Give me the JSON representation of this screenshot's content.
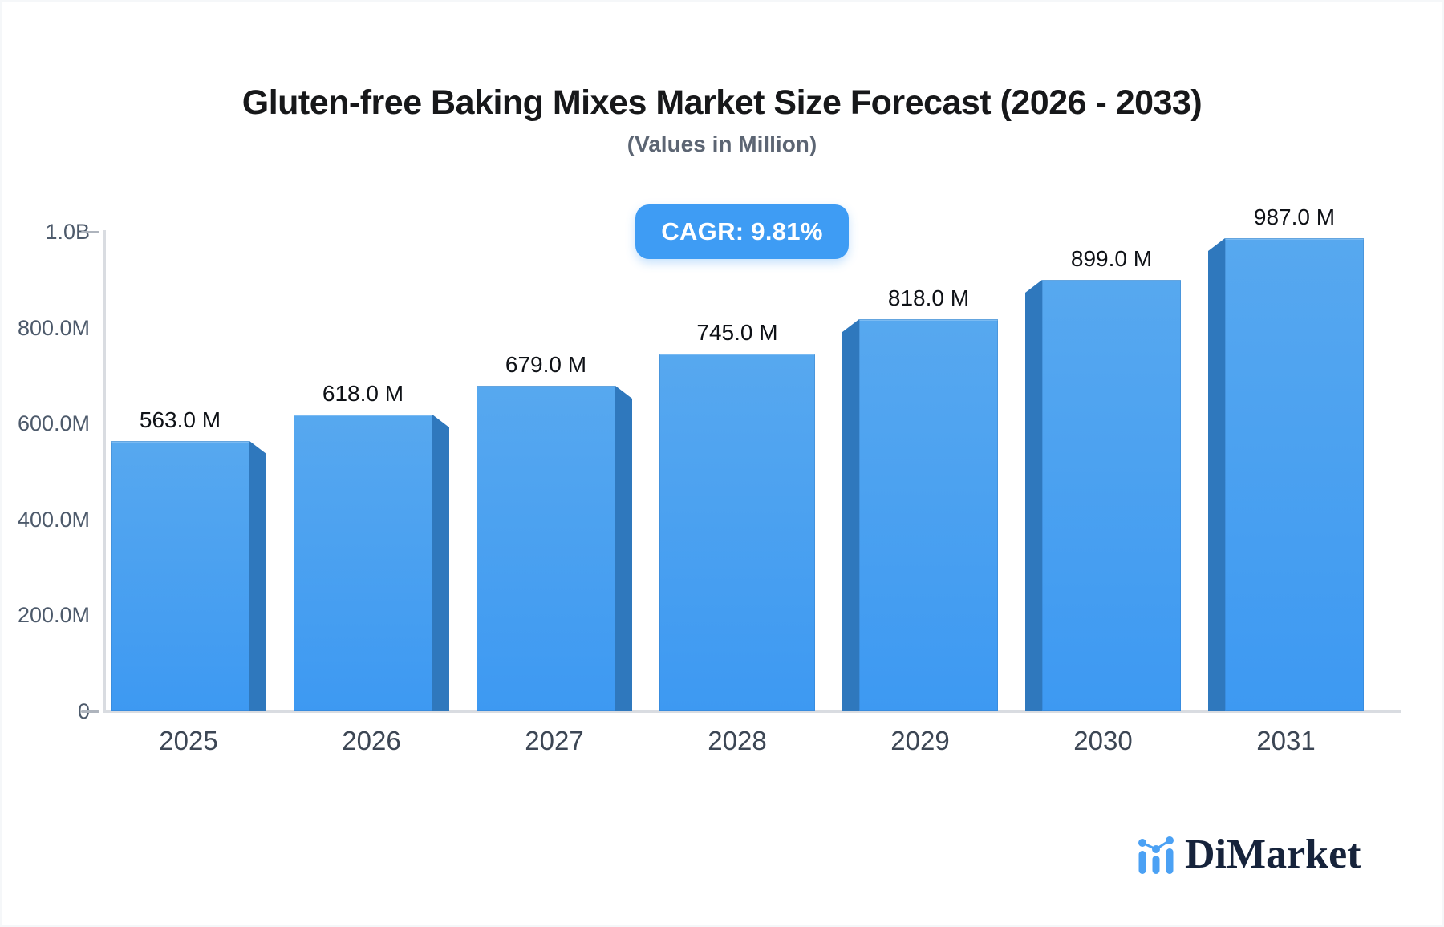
{
  "header": {
    "title": "Gluten-free Baking Mixes Market Size Forecast (2026 - 2033)",
    "subtitle": "(Values in Million)",
    "cagr_badge": "CAGR: 9.81%"
  },
  "chart_data": {
    "type": "bar",
    "title": "Gluten-free Baking Mixes Market Size Forecast (2026 - 2033)",
    "subtitle": "(Values in Million)",
    "cagr_percent": "9.81%",
    "categories": [
      "2025",
      "2026",
      "2027",
      "2028",
      "2029",
      "2030",
      "2031"
    ],
    "values": [
      563.0,
      618.0,
      679.0,
      745.0,
      818.0,
      899.0,
      987.0
    ],
    "value_labels": [
      "563.0 M",
      "618.0 M",
      "679.0 M",
      "745.0 M",
      "818.0 M",
      "899.0 M",
      "987.0 M"
    ],
    "unit": "Million",
    "ylim": [
      0,
      1000
    ],
    "yticks": [
      {
        "label": "1.0B",
        "value": 1000,
        "dash": true
      },
      {
        "label": "800.0M",
        "value": 800,
        "dash": false
      },
      {
        "label": "600.0M",
        "value": 600,
        "dash": false
      },
      {
        "label": "400.0M",
        "value": 400,
        "dash": false
      },
      {
        "label": "200.0M",
        "value": 200,
        "dash": false
      },
      {
        "label": "0",
        "value": 0,
        "dash": true
      }
    ],
    "grid": false,
    "legend": false,
    "colors": {
      "bar_face_top": "#57A8EF",
      "bar_face_bottom": "#3D99F2",
      "bar_side": "#2F78BD",
      "axis_line": "#D9DCE1",
      "tick_dash": "#AEB4BD",
      "y_label": "#4D5A6B",
      "x_label": "#3C4654",
      "value_label": "#0E1116",
      "badge_bg": "#3E9CF4",
      "badge_text": "#FFFFFF"
    }
  },
  "logo": {
    "text": "DiMarket",
    "icon": "bar-line-chart-icon",
    "text_color": "#16233B",
    "icon_color": "#4BA1F4"
  }
}
